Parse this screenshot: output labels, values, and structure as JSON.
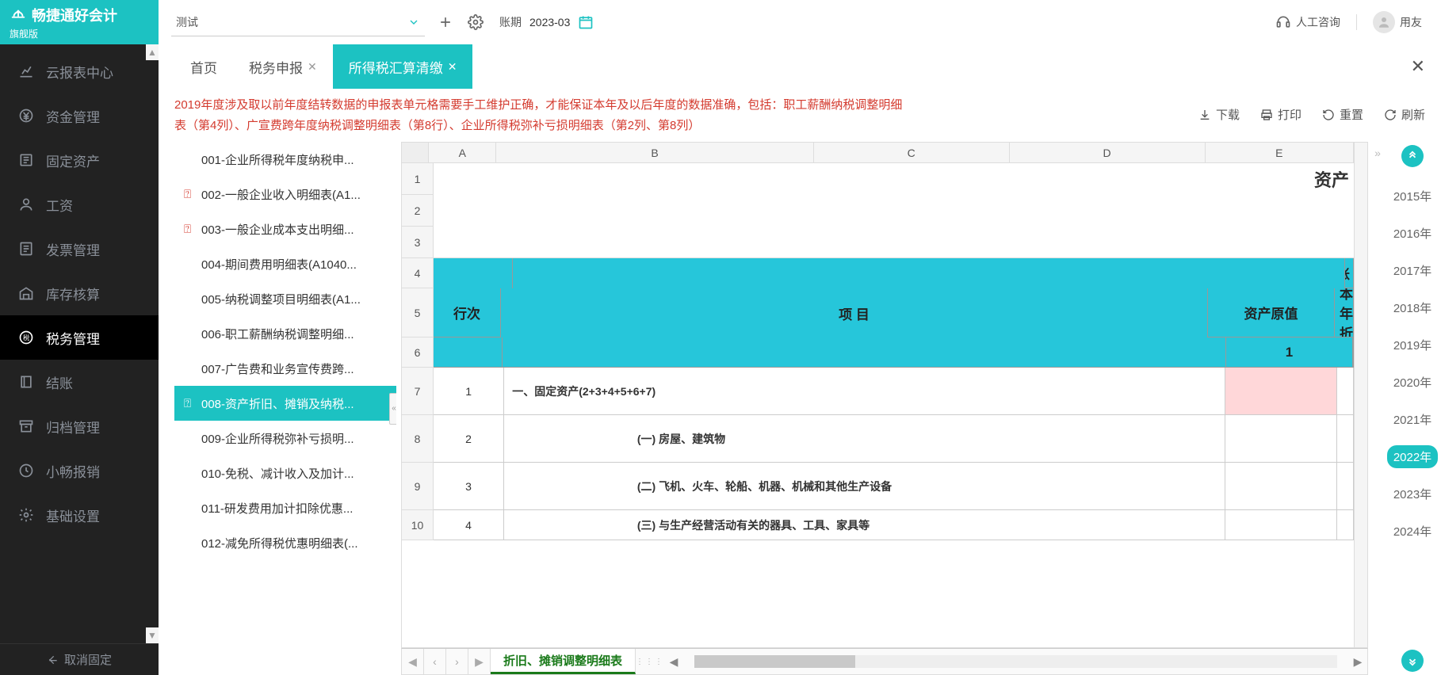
{
  "brand": {
    "name": "畅捷通好会计",
    "edition": "旗舰版"
  },
  "company": {
    "selected": "测试"
  },
  "period": {
    "label": "账期",
    "value": "2023-03"
  },
  "topbar": {
    "consult": "人工咨询",
    "username": "用友"
  },
  "sidebar": {
    "items": [
      {
        "icon": "chart",
        "label": "云报表中心"
      },
      {
        "icon": "yen",
        "label": "资金管理"
      },
      {
        "icon": "asset",
        "label": "固定资产"
      },
      {
        "icon": "person",
        "label": "工资"
      },
      {
        "icon": "invoice",
        "label": "发票管理"
      },
      {
        "icon": "warehouse",
        "label": "库存核算"
      },
      {
        "icon": "tax",
        "label": "税务管理"
      },
      {
        "icon": "ledger",
        "label": "结账"
      },
      {
        "icon": "archive",
        "label": "归档管理"
      },
      {
        "icon": "report",
        "label": "小畅报销"
      },
      {
        "icon": "settings",
        "label": "基础设置"
      }
    ],
    "active_index": 6,
    "footer": "取消固定"
  },
  "tabs": {
    "items": [
      {
        "label": "首页",
        "closable": false
      },
      {
        "label": "税务申报",
        "closable": true
      },
      {
        "label": "所得税汇算清缴",
        "closable": true
      }
    ],
    "active_index": 2
  },
  "notice": "2019年度涉及取以前年度结转数据的申报表单元格需要手工维护正确，才能保证本年及以后年度的数据准确，包括：职工薪酬纳税调整明细表（第4列）、广宣费跨年度纳税调整明细表（第8行）、企业所得税弥补亏损明细表（第2列、第8列）",
  "toolbar": {
    "download": "下载",
    "print": "打印",
    "reset": "重置",
    "refresh": "刷新"
  },
  "report_list": {
    "items": [
      {
        "label": "001-企业所得税年度纳税申...",
        "warn": false
      },
      {
        "label": "002-一般企业收入明细表(A1...",
        "warn": true
      },
      {
        "label": "003-一般企业成本支出明细...",
        "warn": true
      },
      {
        "label": "004-期间费用明细表(A1040...",
        "warn": false
      },
      {
        "label": "005-纳税调整项目明细表(A1...",
        "warn": false
      },
      {
        "label": "006-职工薪酬纳税调整明细...",
        "warn": false
      },
      {
        "label": "007-广告费和业务宣传费跨...",
        "warn": false
      },
      {
        "label": "008-资产折旧、摊销及纳税...",
        "warn": true
      },
      {
        "label": "009-企业所得税弥补亏损明...",
        "warn": false
      },
      {
        "label": "010-免税、减计收入及加计...",
        "warn": false
      },
      {
        "label": "011-研发费用加计扣除优惠...",
        "warn": false
      },
      {
        "label": "012-减免所得税优惠明细表(...",
        "warn": false
      }
    ],
    "active_index": 7
  },
  "sheet": {
    "title_fragment": "资产",
    "columns": [
      "A",
      "B",
      "C",
      "D",
      "E"
    ],
    "header_r4_right": "账",
    "header_r5": {
      "colA": "行次",
      "colBCD": "项 目",
      "colE1": "资产原值",
      "colE2": "本年折"
    },
    "header_r6_e1": "1",
    "rows": [
      {
        "n": "7",
        "line": "1",
        "item": "一、固定资产(2+3+4+5+6+7)",
        "pink": true,
        "span": "full"
      },
      {
        "n": "8",
        "line": "2",
        "item": "(一) 房屋、建筑物",
        "span": "bcd"
      },
      {
        "n": "9",
        "line": "3",
        "item": "(二) 飞机、火车、轮船、机器、机械和其他生产设备",
        "span": "bcd"
      },
      {
        "n": "10",
        "line": "4",
        "item": "(三) 与生产经营活动有关的器具、工具、家具等",
        "span": "bcd"
      }
    ],
    "tab_name": "折旧、摊销调整明细表"
  },
  "years": {
    "items": [
      "2015年",
      "2016年",
      "2017年",
      "2018年",
      "2019年",
      "2020年",
      "2021年",
      "2022年",
      "2023年",
      "2024年"
    ],
    "active_index": 7
  },
  "colors": {
    "accent": "#1cc2c2",
    "header_bg": "#26c6da",
    "warn_text": "#d43b2f",
    "pink_cell": "#ffd7d9",
    "sheet_tab_green": "#1a7a1a"
  }
}
